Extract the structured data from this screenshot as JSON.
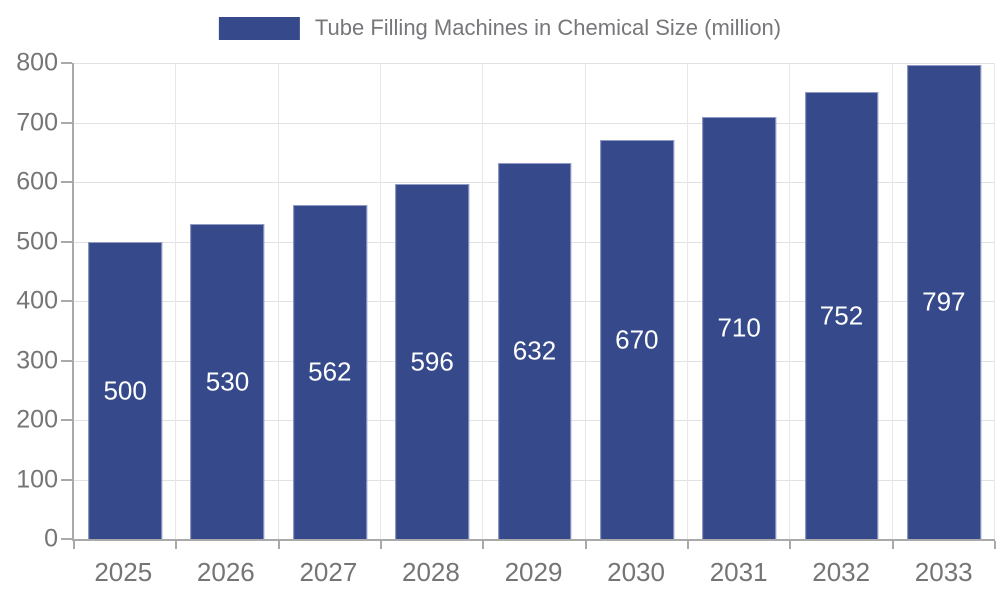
{
  "chart_data": {
    "type": "bar",
    "title": "Tube Filling Machines in Chemical Size (million)",
    "series": [
      {
        "name": "Tube Filling Machines in Chemical Size (million)",
        "values": [
          500,
          530,
          562,
          596,
          632,
          670,
          710,
          752,
          797
        ]
      }
    ],
    "categories": [
      "2025",
      "2026",
      "2027",
      "2028",
      "2029",
      "2030",
      "2031",
      "2032",
      "2033"
    ],
    "xlabel": "",
    "ylabel": "",
    "ylim": [
      0,
      800
    ],
    "yticks": [
      0,
      100,
      200,
      300,
      400,
      500,
      600,
      700,
      800
    ],
    "grid": "on",
    "legend_position": "top-center",
    "bar_color": "#364a8b",
    "bar_label_color": "#ffffff",
    "axis_text_color": "#757575",
    "grid_color": "#e2e2e2",
    "axis_line_color": "#a9a9a9"
  }
}
